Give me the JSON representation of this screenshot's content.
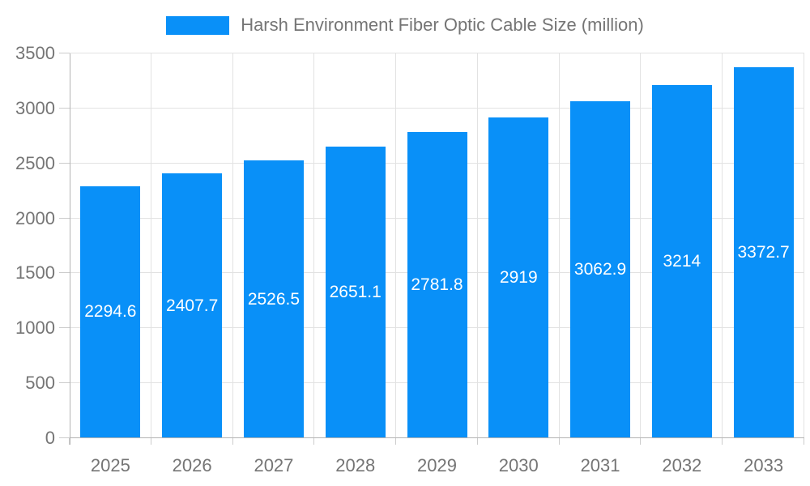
{
  "chart_data": {
    "type": "bar",
    "title": "Harsh Environment Fiber Optic Cable Size (million)",
    "categories": [
      "2025",
      "2026",
      "2027",
      "2028",
      "2029",
      "2030",
      "2031",
      "2032",
      "2033"
    ],
    "values": [
      2294.6,
      2407.7,
      2526.5,
      2651.1,
      2781.8,
      2919,
      3062.9,
      3214,
      3372.7
    ],
    "bar_labels": [
      "2294.6",
      "2407.7",
      "2526.5",
      "2651.1",
      "2781.8",
      "2919",
      "3062.9",
      "3214",
      "3372.7"
    ],
    "xlabel": "",
    "ylabel": "",
    "ylim": [
      0,
      3500
    ],
    "yticks": [
      0,
      500,
      1000,
      1500,
      2000,
      2500,
      3000,
      3500
    ],
    "grid": true,
    "legend_position": "top"
  },
  "colors": {
    "bar": "#0990F8",
    "grid": "#E2E2E2",
    "axis": "#B3B3B3",
    "tick": "#CCCCCC",
    "text": "#757575",
    "bar_label": "#FFFFFF",
    "background": "#FFFFFF"
  }
}
